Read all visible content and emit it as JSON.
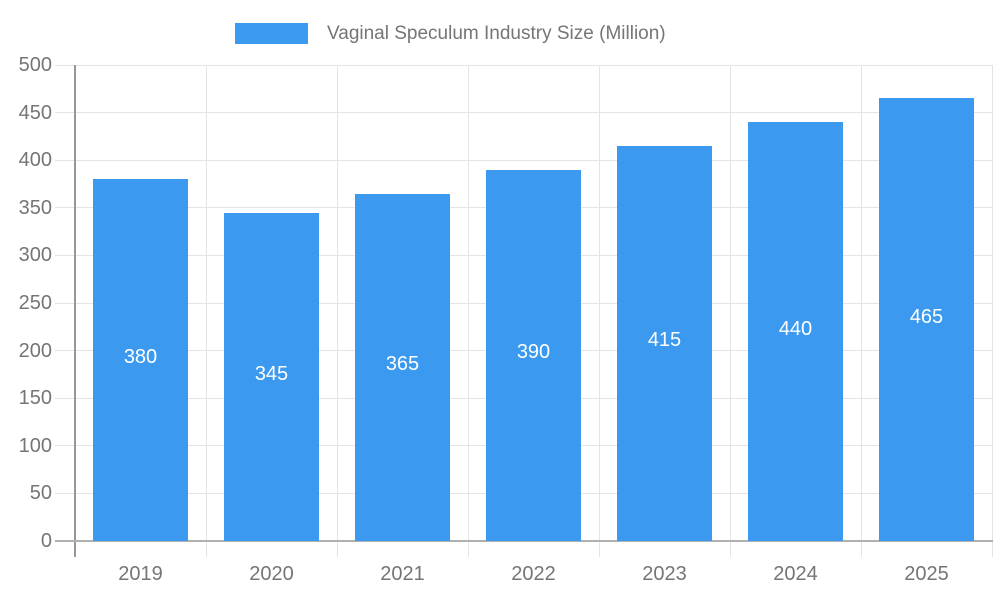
{
  "chart_data": {
    "type": "bar",
    "title": "Vaginal Speculum Industry Size (Million)",
    "legend": {
      "position": "top",
      "entries": [
        "Vaginal Speculum Industry Size (Million)"
      ]
    },
    "categories": [
      "2019",
      "2020",
      "2021",
      "2022",
      "2023",
      "2024",
      "2025"
    ],
    "series": [
      {
        "name": "Vaginal Speculum Industry Size (Million)",
        "values": [
          380,
          345,
          365,
          390,
          415,
          440,
          465
        ]
      }
    ],
    "bar_value_labels": [
      "380",
      "345",
      "365",
      "390",
      "415",
      "440",
      "465"
    ],
    "bar_label_position": "inside-center",
    "xlabel": "",
    "ylabel": "",
    "ylim": [
      0,
      500
    ],
    "ytick_step": 50,
    "ytick_labels": [
      "0",
      "50",
      "100",
      "150",
      "200",
      "250",
      "300",
      "350",
      "400",
      "450",
      "500"
    ],
    "grid": true,
    "colors": {
      "bar": "#3B9AEF",
      "grid_line": "#e4e4e4",
      "axis_line_y": "#969696",
      "axis_line_x": "#b0b0b0",
      "axis_text": "#757575",
      "bar_value_text": "#ffffff",
      "background": "#ffffff"
    }
  }
}
